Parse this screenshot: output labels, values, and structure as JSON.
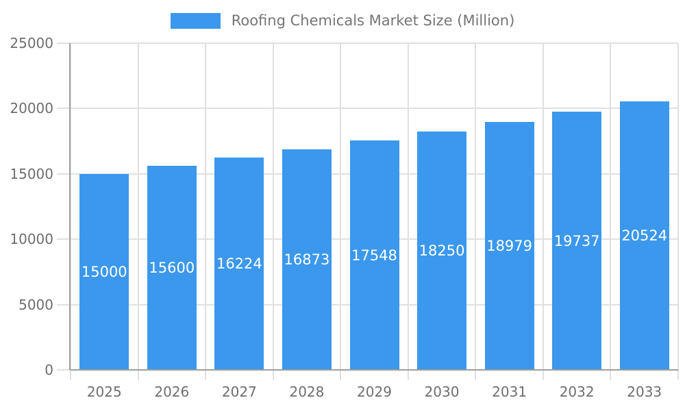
{
  "legend": {
    "label": "Roofing Chemicals Market Size (Million)"
  },
  "chart_data": {
    "type": "bar",
    "title": "Roofing Chemicals Market Size (Million)",
    "xlabel": "",
    "ylabel": "",
    "legend_position": "top",
    "grid": true,
    "categories": [
      "2025",
      "2026",
      "2027",
      "2028",
      "2029",
      "2030",
      "2031",
      "2032",
      "2033"
    ],
    "series": [
      {
        "name": "Roofing Chemicals Market Size (Million)",
        "values": [
          15000,
          15600,
          16224,
          16873,
          17548,
          18250,
          18979,
          19737,
          20524
        ]
      }
    ],
    "bar_value_labels": [
      "15000",
      "15600",
      "16224",
      "16873",
      "17548",
      "18250",
      "18979",
      "19737",
      "20524"
    ],
    "ylim": [
      0,
      25000
    ],
    "yticks": [
      0,
      5000,
      10000,
      15000,
      20000,
      25000
    ],
    "colors": {
      "bar": "#3B98EC",
      "grid_line": "#E0E0E0",
      "axis_line": "#9E9E9E",
      "tick_label": "#6E6E6E",
      "legend_text": "#757575",
      "bar_label_text": "#FFFFFF",
      "background": "#FFFFFF"
    }
  }
}
